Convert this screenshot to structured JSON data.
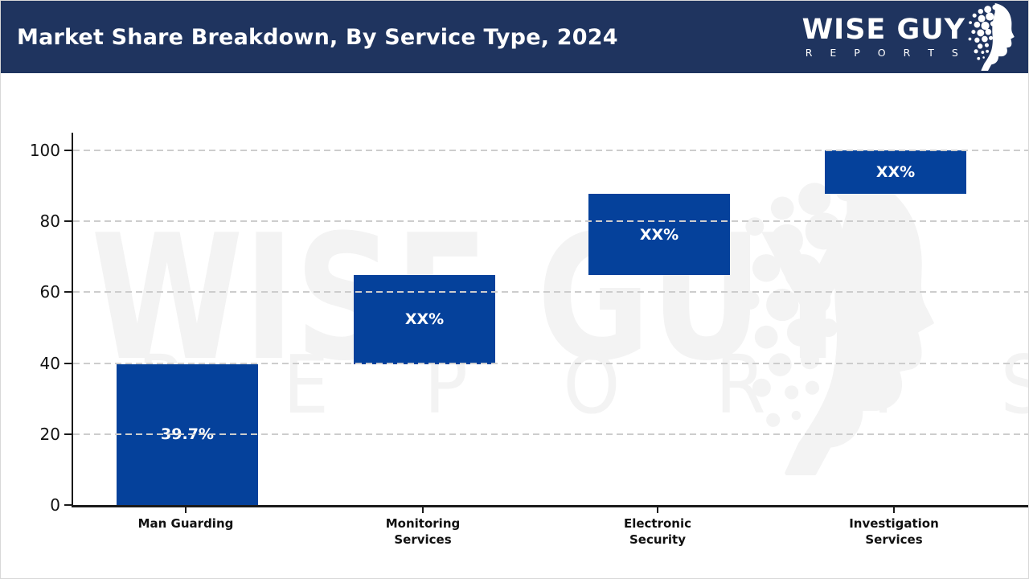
{
  "page": {
    "background": "#ffffff",
    "border_color": "#d8d8d8"
  },
  "header": {
    "bg_color": "#1f345f",
    "title": "Market Share Breakdown, By Service Type, 2024",
    "logo": {
      "name_top": "WISE GUY",
      "name_bottom": "R E P O R T S"
    }
  },
  "watermark": {
    "text_large": "WISE GUY",
    "text_small": "R E P O R T S"
  },
  "chart_data": {
    "type": "bar",
    "subtype": "floating-waterfall",
    "title": "Market Share Breakdown, By Service Type, 2024",
    "categories": [
      "Man Guarding",
      "Monitoring\nServices",
      "Electronic\nSecurity",
      "Investigation\nServices"
    ],
    "series": [
      {
        "name": "Market share %",
        "segments": [
          {
            "category": "Man Guarding",
            "start": 0,
            "end": 39.7,
            "label": "39.7%"
          },
          {
            "category": "Monitoring Services",
            "start": 39.7,
            "end": 64.9,
            "label": "XX%"
          },
          {
            "category": "Electronic Security",
            "start": 64.9,
            "end": 87.7,
            "label": "XX%"
          },
          {
            "category": "Investigation Services",
            "start": 87.7,
            "end": 100,
            "label": "XX%"
          }
        ]
      }
    ],
    "xlabel": "",
    "ylabel": "",
    "ylim": [
      0,
      100
    ],
    "yticks": [
      0,
      20,
      40,
      60,
      80,
      100
    ],
    "grid": {
      "axis": "y",
      "style": "dashed",
      "color": "#cdcdcd"
    },
    "legend": "none",
    "bar_color": "#05419b",
    "bar_label_color": "#ffffff",
    "axis_color": "#1a1a1a"
  }
}
